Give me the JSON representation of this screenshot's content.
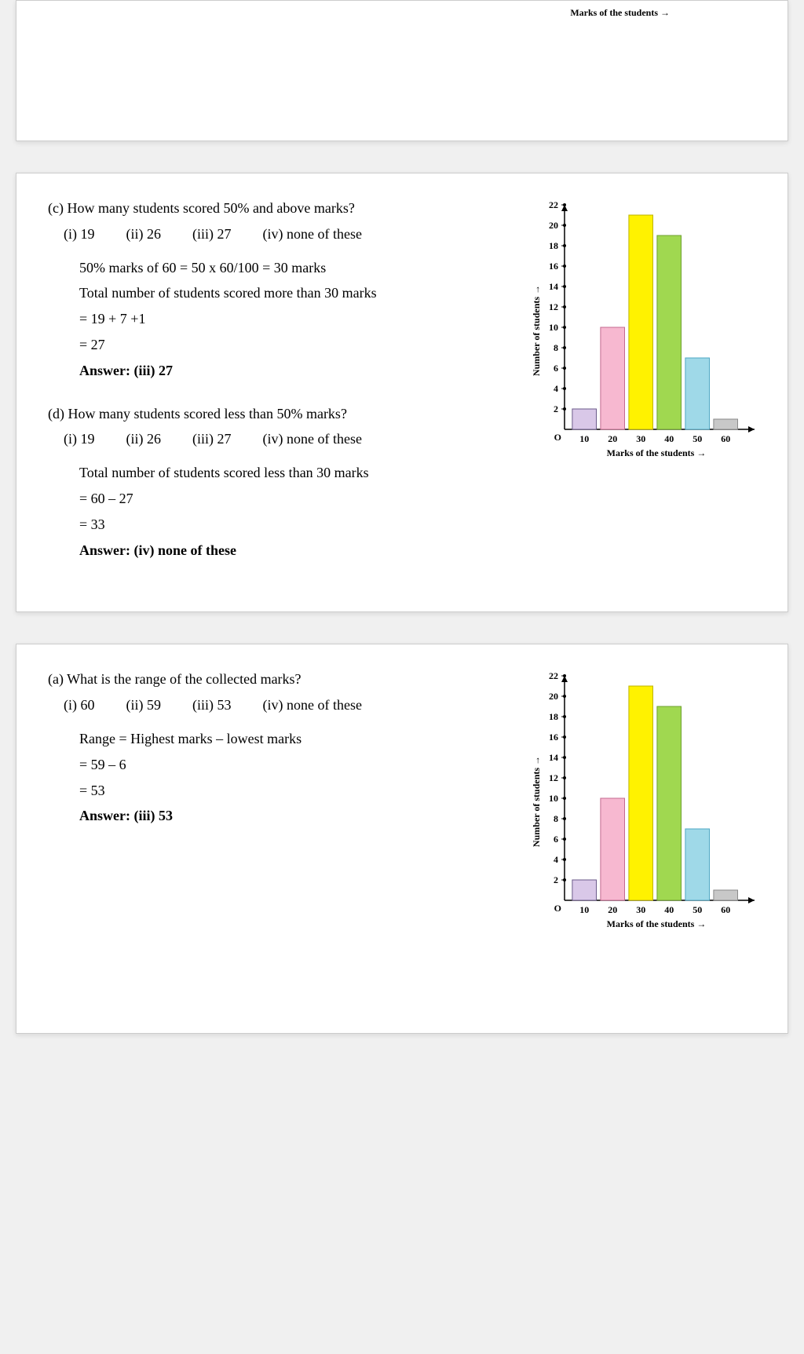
{
  "top_axis_label": "Marks of the students →",
  "chart": {
    "type": "bar",
    "ylabel": "Number of students →",
    "xlabel": "Marks of the students →",
    "y_ticks": [
      2,
      4,
      6,
      8,
      10,
      12,
      14,
      16,
      18,
      20,
      22
    ],
    "x_ticks": [
      10,
      20,
      30,
      40,
      50,
      60
    ],
    "origin_label": "O",
    "ylim": [
      0,
      22
    ],
    "bars": [
      {
        "x": 10,
        "h": 2,
        "fill": "#d9c8e8",
        "stroke": "#6b5a8a"
      },
      {
        "x": 20,
        "h": 10,
        "fill": "#f7b8d0",
        "stroke": "#c46a8f"
      },
      {
        "x": 30,
        "h": 21,
        "fill": "#fff200",
        "stroke": "#bdb300"
      },
      {
        "x": 40,
        "h": 19,
        "fill": "#a0d850",
        "stroke": "#6fa12f"
      },
      {
        "x": 50,
        "h": 7,
        "fill": "#9fd9e8",
        "stroke": "#4fa8c4"
      },
      {
        "x": 60,
        "h": 1,
        "fill": "#c8c8c8",
        "stroke": "#8a8a8a"
      }
    ],
    "tick_fontsize": 12,
    "label_fontsize": 12,
    "background_color": "#ffffff",
    "axis_color": "#000000"
  },
  "q_c": {
    "prefix": "(c)",
    "text": "How many students scored 50% and above marks?",
    "opts": {
      "i": "(i) 19",
      "ii": "(ii) 26",
      "iii": "(iii) 27",
      "iv": "(iv) none of these"
    },
    "work": [
      "50% marks of 60 = 50 x 60/100 = 30 marks",
      "Total number of students scored more than 30 marks",
      "= 19 + 7 +1",
      "= 27"
    ],
    "answer": "Answer: (iii) 27"
  },
  "q_d": {
    "prefix": "(d)",
    "text": "How many students scored less than 50% marks?",
    "opts": {
      "i": "(i) 19",
      "ii": "(ii) 26",
      "iii": "(iii) 27",
      "iv": "(iv) none of these"
    },
    "work": [
      "Total number of students scored less than 30 marks",
      "= 60 – 27",
      "= 33"
    ],
    "answer": "Answer: (iv) none of these"
  },
  "q_a": {
    "prefix": "(a)",
    "text": "What is the range of the collected marks?",
    "opts": {
      "i": "(i) 60",
      "ii": "(ii) 59",
      "iii": "(iii) 53",
      "iv": "(iv) none of these"
    },
    "work": [
      "Range = Highest marks – lowest marks",
      "= 59 – 6",
      "= 53"
    ],
    "answer": "Answer: (iii) 53"
  }
}
